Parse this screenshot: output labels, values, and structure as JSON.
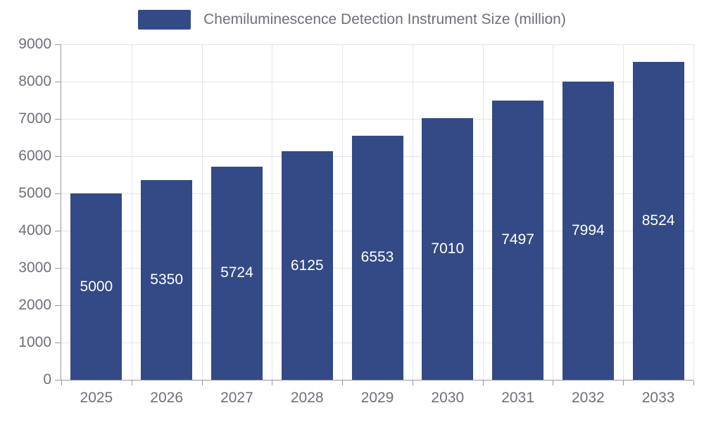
{
  "legend": {
    "label": "Chemiluminescence Detection Instrument Size (million)",
    "swatch_color": "#344A86"
  },
  "chart_data": {
    "type": "bar",
    "title": "Chemiluminescence Detection Instrument Size (million)",
    "categories": [
      "2025",
      "2026",
      "2027",
      "2028",
      "2029",
      "2030",
      "2031",
      "2032",
      "2033"
    ],
    "values": [
      5000,
      5350,
      5724,
      6125,
      6553,
      7010,
      7497,
      7994,
      8524
    ],
    "value_labels": [
      "5000",
      "5350",
      "5724",
      "6125",
      "6553",
      "7010",
      "7497",
      "7994",
      "8524"
    ],
    "xlabel": "",
    "ylabel": "",
    "ylim": [
      0,
      9000
    ],
    "yticks": [
      0,
      1000,
      2000,
      3000,
      4000,
      5000,
      6000,
      7000,
      8000,
      9000
    ],
    "ytick_labels": [
      "0",
      "1000",
      "2000",
      "3000",
      "4000",
      "5000",
      "6000",
      "7000",
      "8000",
      "9000"
    ],
    "grid": true,
    "legend_position": "top",
    "bar_color": "#344A86",
    "bar_label_color": "#ffffff",
    "axis_text_color": "#6E7079",
    "grid_color": "#E3E6EC",
    "axis_line_color": "#999999",
    "background_color": "#ffffff"
  }
}
